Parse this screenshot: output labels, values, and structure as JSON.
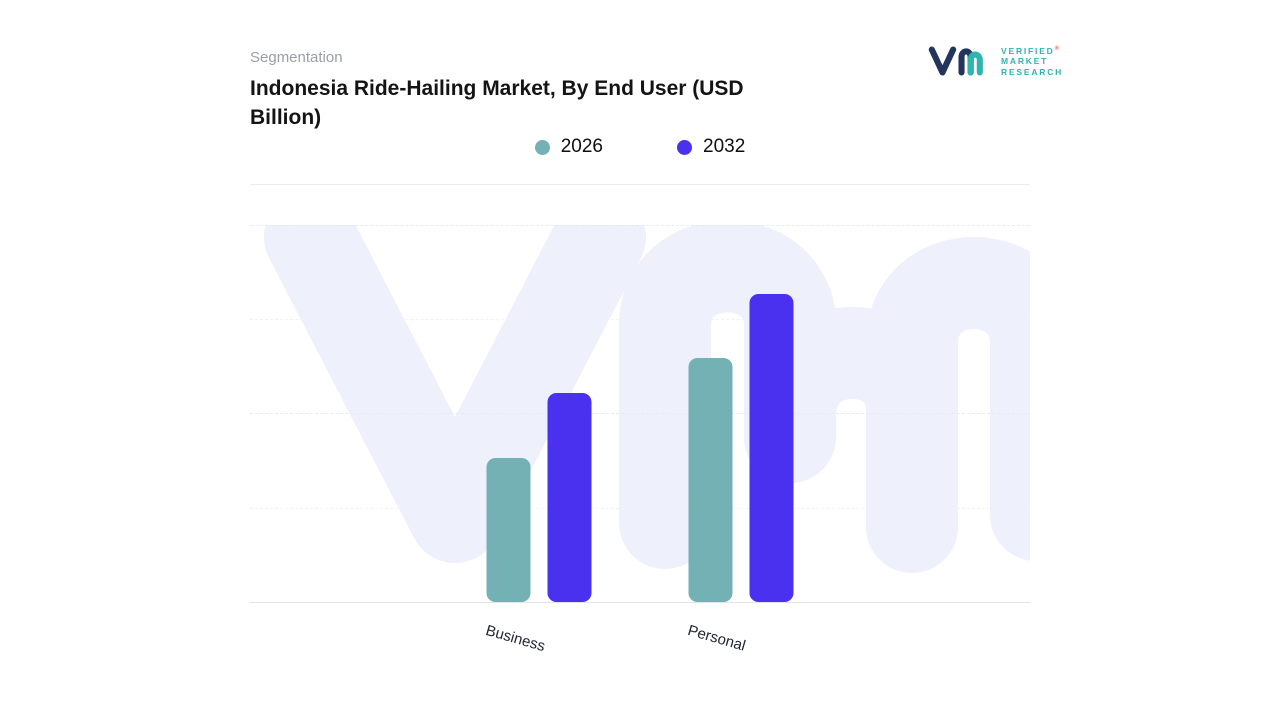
{
  "header": {
    "eyebrow": "Segmentation",
    "title": "Indonesia Ride-Hailing Market, By End User (USD Billion)"
  },
  "logo": {
    "line1": "VERIFIED",
    "line2": "MARKET",
    "line3": "RESEARCH",
    "registered": "®"
  },
  "legend": [
    {
      "label": "2026",
      "color": "#74b1b4"
    },
    {
      "label": "2032",
      "color": "#4a31f0"
    }
  ],
  "chart_data": {
    "type": "bar",
    "title": "Indonesia Ride-Hailing Market, By End User (USD Billion)",
    "subtitle_eyebrow": "Segmentation",
    "categories": [
      "Business",
      "Personal"
    ],
    "series": [
      {
        "name": "2026",
        "color": "#74b1b4",
        "values": [
          1.45,
          2.45
        ]
      },
      {
        "name": "2032",
        "color": "#4a31f0",
        "values": [
          2.1,
          3.1
        ]
      }
    ],
    "xlabel": "",
    "ylabel": "",
    "ylim": [
      0,
      3.8
    ],
    "value_axis_labels_visible": false,
    "grid": "horizontal-dashed",
    "legend_position": "top-center",
    "note": "No numeric axis labels shown; values are relative units estimated from bar heights"
  }
}
